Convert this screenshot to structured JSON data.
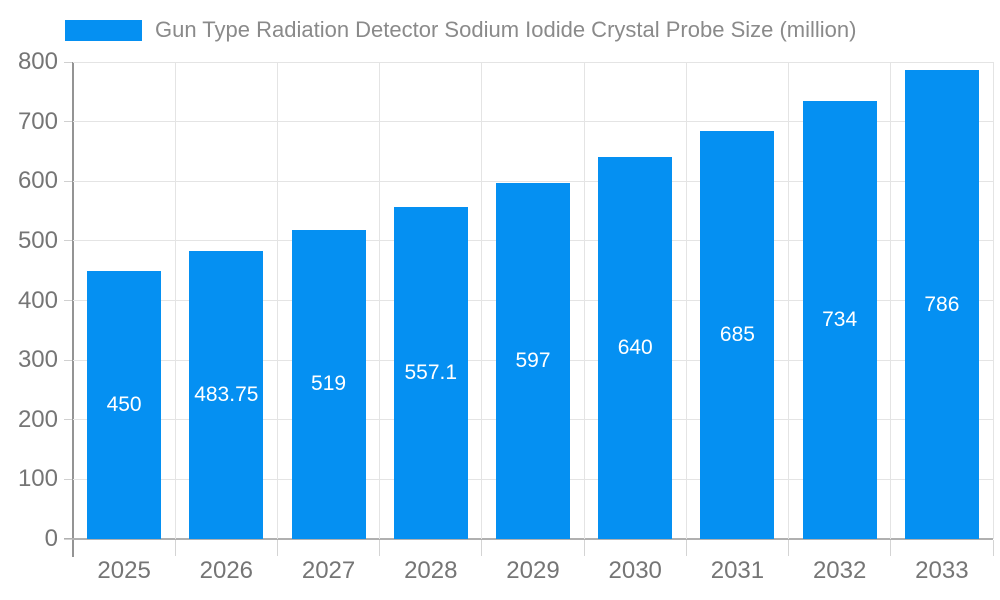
{
  "legend": {
    "label": "Gun Type Radiation Detector Sodium Iodide Crystal Probe Size (million)",
    "swatch_color": "#0590f2"
  },
  "chart_data": {
    "type": "bar",
    "title": "Gun Type Radiation Detector Sodium Iodide Crystal Probe Size (million)",
    "categories": [
      "2025",
      "2026",
      "2027",
      "2028",
      "2029",
      "2030",
      "2031",
      "2032",
      "2033"
    ],
    "values": [
      450,
      483.75,
      519,
      557.1,
      597,
      640,
      685,
      734,
      786
    ],
    "value_labels": [
      "450",
      "483.75",
      "519",
      "557.1",
      "597",
      "640",
      "685",
      "734",
      "786"
    ],
    "ylim": [
      0,
      800
    ],
    "yticks": [
      0,
      100,
      200,
      300,
      400,
      500,
      600,
      700,
      800
    ],
    "ytick_labels": [
      "0",
      "100",
      "200",
      "300",
      "400",
      "500",
      "600",
      "700",
      "800"
    ],
    "grid": true,
    "legend_position": "top-left",
    "bar_color": "#0590f2",
    "value_label_color": "#ffffff",
    "axis_label_color": "#757575"
  }
}
